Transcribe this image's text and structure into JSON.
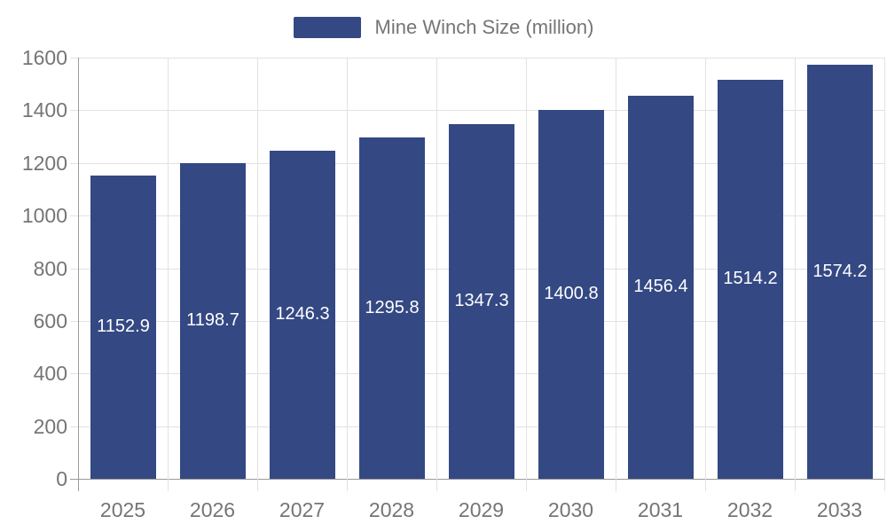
{
  "legend": {
    "series_label": "Mine Winch Size (million)"
  },
  "colors": {
    "bar": "#344883",
    "value_label_text": "#ffffff",
    "axis_label_text": "#757575",
    "legend_text": "#757575",
    "gridline": "#e2e2e2",
    "axis_line": "#9a9a9a"
  },
  "chart_data": {
    "type": "bar",
    "title": "Mine Winch Size (million)",
    "categories": [
      "2025",
      "2026",
      "2027",
      "2028",
      "2029",
      "2030",
      "2031",
      "2032",
      "2033"
    ],
    "series": [
      {
        "name": "Mine Winch Size (million)",
        "values": [
          1152.9,
          1198.7,
          1246.3,
          1295.8,
          1347.3,
          1400.8,
          1456.4,
          1514.2,
          1574.2
        ]
      }
    ],
    "value_labels": [
      "1152.9",
      "1198.7",
      "1246.3",
      "1295.8",
      "1347.3",
      "1400.8",
      "1456.4",
      "1514.2",
      "1574.2"
    ],
    "xlabel": "",
    "ylabel": "",
    "ylim": [
      0,
      1600
    ],
    "ytick_step": 200,
    "ytick_labels": [
      "0",
      "200",
      "400",
      "600",
      "800",
      "1000",
      "1200",
      "1400",
      "1600"
    ],
    "grid": true,
    "legend_position": "top"
  }
}
